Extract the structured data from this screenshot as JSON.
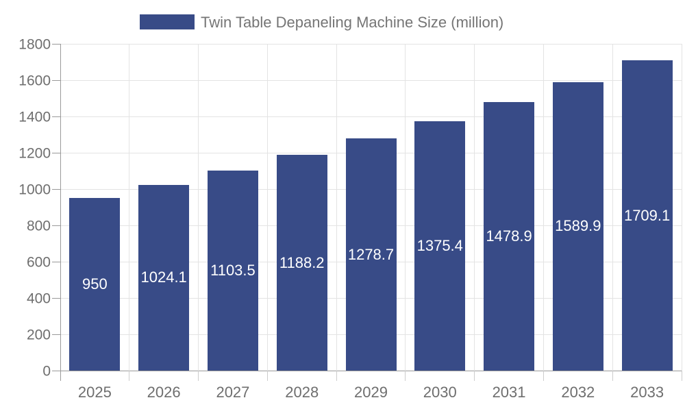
{
  "chart_data": {
    "type": "bar",
    "title": "Twin Table Depaneling Machine Size (million)",
    "legend_position": "top",
    "categories": [
      "2025",
      "2026",
      "2027",
      "2028",
      "2029",
      "2030",
      "2031",
      "2032",
      "2033"
    ],
    "values": [
      950,
      1024.1,
      1103.5,
      1188.2,
      1278.7,
      1375.4,
      1478.9,
      1589.9,
      1709.1
    ],
    "xlabel": "",
    "ylabel": "",
    "ylim": [
      0,
      1800
    ],
    "ytick_step": 200,
    "grid": true,
    "colors": {
      "bar": "#384B87",
      "bar_value_label": "#ffffff",
      "grid_line": "#e3e3e3",
      "axis_line": "#999999",
      "x_tick": "#cccccc",
      "axis_text": "#6e6e6e",
      "legend_text": "#757575",
      "background": "#ffffff"
    }
  }
}
